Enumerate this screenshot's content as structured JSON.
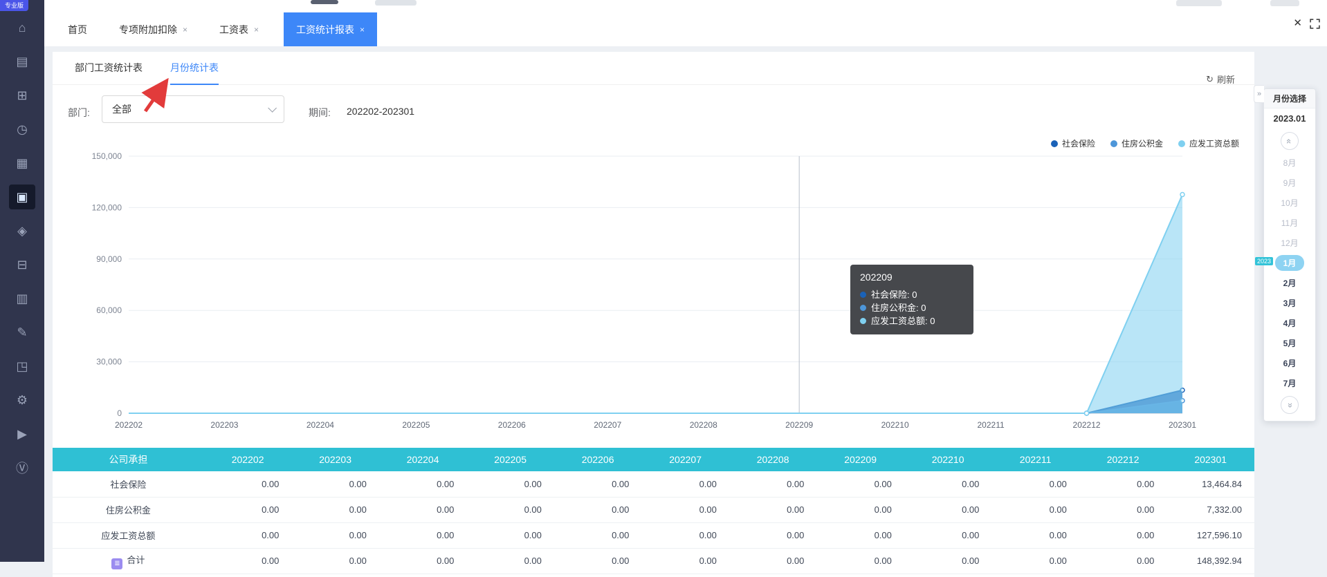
{
  "edition_badge": "专业版",
  "sidebar": {
    "items": [
      {
        "name": "home-icon",
        "glyph": "⌂"
      },
      {
        "name": "voucher-icon",
        "glyph": "▤"
      },
      {
        "name": "report-icon",
        "glyph": "⊞"
      },
      {
        "name": "funds-icon",
        "glyph": "◷"
      },
      {
        "name": "invoice-icon",
        "glyph": "▦"
      },
      {
        "name": "salary-report-icon",
        "glyph": "▣",
        "active": true
      },
      {
        "name": "purchase-sale-icon",
        "glyph": "◈"
      },
      {
        "name": "asset-icon",
        "glyph": "⊟"
      },
      {
        "name": "ledger-icon",
        "glyph": "▥"
      },
      {
        "name": "checkout-icon",
        "glyph": "✎"
      },
      {
        "name": "archive-icon",
        "glyph": "◳"
      },
      {
        "name": "settings-icon",
        "glyph": "⚙"
      },
      {
        "name": "tutorial-icon",
        "glyph": "▶"
      },
      {
        "name": "brand-v-icon",
        "glyph": "Ⓥ"
      }
    ]
  },
  "topbar": {
    "close_glyph": "✕",
    "tabs": [
      {
        "label": "首页",
        "closable": false,
        "active": false
      },
      {
        "label": "专项附加扣除",
        "closable": true,
        "active": false
      },
      {
        "label": "工资表",
        "closable": true,
        "active": false
      },
      {
        "label": "工资统计报表",
        "closable": true,
        "active": true
      }
    ]
  },
  "panel": {
    "subtabs": [
      {
        "label": "部门工资统计表",
        "active": false
      },
      {
        "label": "月份统计表",
        "active": true
      }
    ],
    "refresh": {
      "glyph": "↻",
      "label": "刷新"
    },
    "filters": {
      "department_label": "部门:",
      "department_value": "全部",
      "period_label": "期间:",
      "period_value": "202202-202301"
    }
  },
  "chart_data": {
    "type": "area",
    "title": "",
    "xlabel": "",
    "ylabel": "",
    "categories": [
      "202202",
      "202203",
      "202204",
      "202205",
      "202206",
      "202207",
      "202208",
      "202209",
      "202210",
      "202211",
      "202212",
      "202301"
    ],
    "series": [
      {
        "name": "社会保险",
        "color": "#1a62b8",
        "values": [
          0,
          0,
          0,
          0,
          0,
          0,
          0,
          0,
          0,
          0,
          0,
          13464.84
        ]
      },
      {
        "name": "住房公积金",
        "color": "#4d96d9",
        "values": [
          0,
          0,
          0,
          0,
          0,
          0,
          0,
          0,
          0,
          0,
          0,
          7332.0
        ]
      },
      {
        "name": "应发工资总额",
        "color": "#7fd0f0",
        "values": [
          0,
          0,
          0,
          0,
          0,
          0,
          0,
          0,
          0,
          0,
          0,
          127596.1
        ]
      }
    ],
    "ylim": [
      0,
      150000
    ],
    "yticks": [
      0,
      30000,
      60000,
      90000,
      120000,
      150000
    ],
    "grid": true,
    "legend_position": "top-right",
    "axis_pointer": "202209"
  },
  "tooltip": {
    "title": "202209",
    "rows": [
      {
        "label": "社会保险",
        "value": "0"
      },
      {
        "label": "住房公积金",
        "value": "0"
      },
      {
        "label": "应发工资总额",
        "value": "0"
      }
    ]
  },
  "table": {
    "columns": [
      "公司承担",
      "202202",
      "202203",
      "202204",
      "202205",
      "202206",
      "202207",
      "202208",
      "202209",
      "202210",
      "202211",
      "202212",
      "202301"
    ],
    "rows": [
      {
        "label": "社会保险",
        "total": false,
        "values": [
          "0.00",
          "0.00",
          "0.00",
          "0.00",
          "0.00",
          "0.00",
          "0.00",
          "0.00",
          "0.00",
          "0.00",
          "0.00",
          "13,464.84"
        ]
      },
      {
        "label": "住房公积金",
        "total": false,
        "values": [
          "0.00",
          "0.00",
          "0.00",
          "0.00",
          "0.00",
          "0.00",
          "0.00",
          "0.00",
          "0.00",
          "0.00",
          "0.00",
          "7,332.00"
        ]
      },
      {
        "label": "应发工资总额",
        "total": false,
        "values": [
          "0.00",
          "0.00",
          "0.00",
          "0.00",
          "0.00",
          "0.00",
          "0.00",
          "0.00",
          "0.00",
          "0.00",
          "0.00",
          "127,596.10"
        ]
      },
      {
        "label": "合计",
        "total": true,
        "icon_glyph": "≣",
        "values": [
          "0.00",
          "0.00",
          "0.00",
          "0.00",
          "0.00",
          "0.00",
          "0.00",
          "0.00",
          "0.00",
          "0.00",
          "0.00",
          "148,392.94"
        ]
      }
    ]
  },
  "month_panel": {
    "collapse_glyph": "»",
    "title": "月份选择",
    "current": "2023.01",
    "scroll_glyph": "«",
    "months": [
      {
        "label": "8月",
        "state": "muted"
      },
      {
        "label": "9月",
        "state": "muted"
      },
      {
        "label": "10月",
        "state": "muted"
      },
      {
        "label": "11月",
        "state": "muted"
      },
      {
        "label": "12月",
        "state": "muted"
      },
      {
        "label": "1月",
        "state": "active",
        "year_badge": "2023"
      },
      {
        "label": "2月",
        "state": "normal"
      },
      {
        "label": "3月",
        "state": "normal"
      },
      {
        "label": "4月",
        "state": "normal"
      },
      {
        "label": "5月",
        "state": "normal"
      },
      {
        "label": "6月",
        "state": "normal"
      },
      {
        "label": "7月",
        "state": "normal"
      }
    ]
  }
}
